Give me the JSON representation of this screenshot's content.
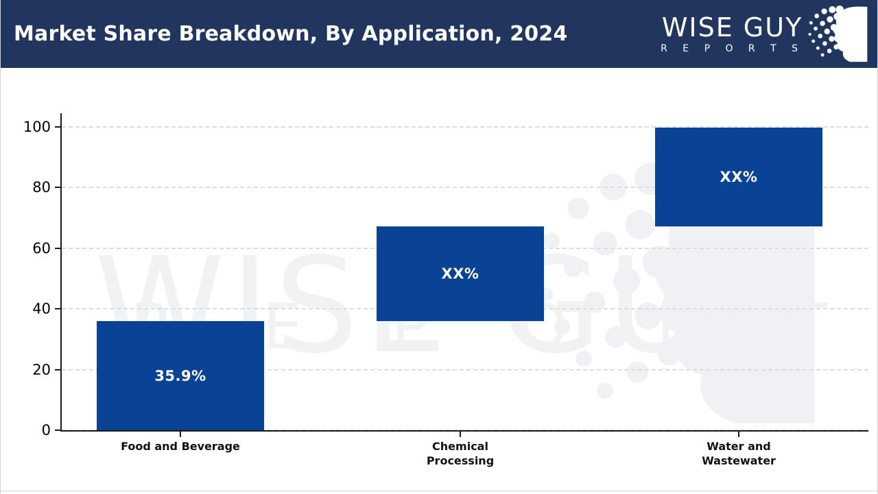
{
  "header": {
    "title": "Market Share Breakdown, By Application, 2024",
    "logo": {
      "line1": "WISE GUY",
      "line2": "R E P O R T S"
    }
  },
  "watermark": {
    "line1": "WISE GUY",
    "line2": "R E P O R T S"
  },
  "theme": {
    "header_bg": "#21365f",
    "bar_color": "#0a4296",
    "grid_color": "#dcdcdc",
    "axis_color": "#1a1a1a",
    "watermark_color": "#f1f2f4"
  },
  "chart_data": {
    "type": "bar",
    "variant": "waterfall",
    "title": "Market Share Breakdown, By Application, 2024",
    "categories": [
      "Food and Beverage",
      "Chemical\nProcessing",
      "Water and\nWastewater"
    ],
    "series": [
      {
        "name": "Market share (%)",
        "segments": [
          {
            "start": 0,
            "end": 35.9,
            "label": "35.9%"
          },
          {
            "start": 35.9,
            "end": 67.2,
            "label": "XX%"
          },
          {
            "start": 67.2,
            "end": 99.8,
            "label": "XX%"
          }
        ]
      }
    ],
    "xlabel": "",
    "ylabel": "",
    "yticks": [
      0,
      20,
      40,
      60,
      80,
      100
    ],
    "ylim": [
      0,
      104.5
    ],
    "grid": "horizontal-dashed",
    "legend": "none"
  }
}
